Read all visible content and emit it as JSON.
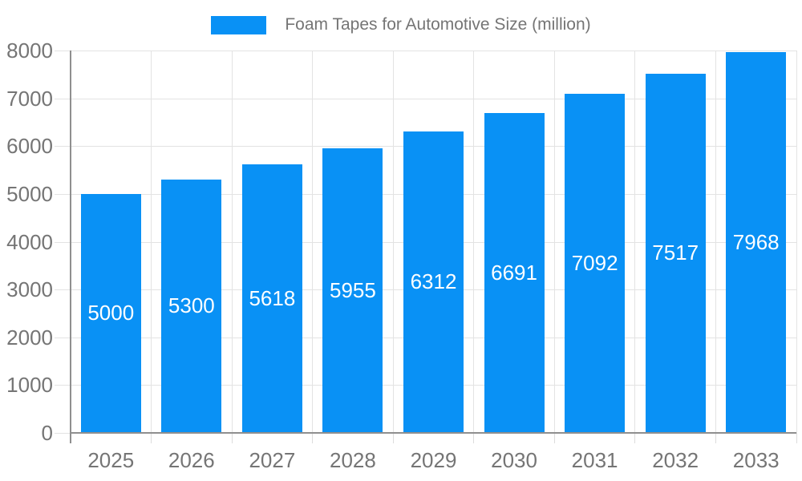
{
  "chart_data": {
    "type": "bar",
    "title": "Foam Tapes for Automotive Size (million)",
    "categories": [
      "2025",
      "2026",
      "2027",
      "2028",
      "2029",
      "2030",
      "2031",
      "2032",
      "2033"
    ],
    "values": [
      5000,
      5300,
      5618,
      5955,
      6312,
      6691,
      7092,
      7517,
      7968
    ],
    "xlabel": "",
    "ylabel": "",
    "ylim": [
      0,
      8000
    ],
    "yticks": [
      0,
      1000,
      2000,
      3000,
      4000,
      5000,
      6000,
      7000,
      8000
    ],
    "grid": true,
    "bar_labels_position": "inside-center",
    "legend": {
      "position": "top",
      "label": "Foam Tapes for Automotive Size (million)"
    },
    "colors": {
      "bar": "#0991f5",
      "bar_label": "#ffffff",
      "axis_text": "#757575",
      "grid_line": "#e3e3e3",
      "axis_line": "#8f8f8f",
      "background": "#ffffff"
    }
  }
}
